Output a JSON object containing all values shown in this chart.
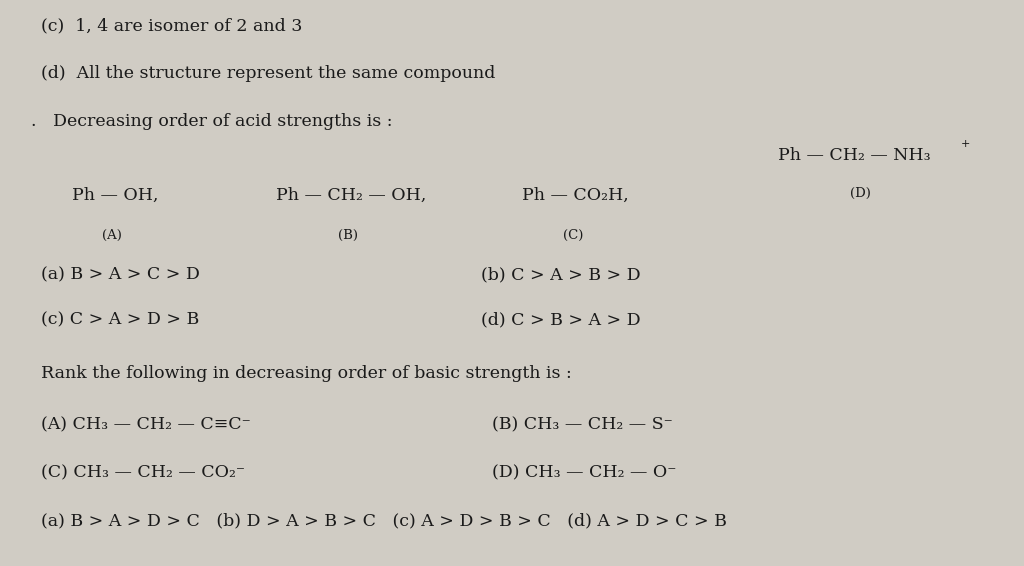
{
  "bg_color": "#d0ccc4",
  "text_color": "#1a1a1a",
  "figsize": [
    10.24,
    5.66
  ],
  "dpi": 100,
  "line_c": "(c)  1, 4 are isomer of 2 and 3",
  "line_d": "(d)  All the structure represent the same compound",
  "line_q": ".   Decreasing order of acid strengths is :",
  "compA_main": "Ph — OH,",
  "compA_sub": "(A)",
  "compB_main": "Ph — CH₂ — OH,",
  "compB_sub": "(B)",
  "compC_main": "Ph — CO₂H,",
  "compC_sub": "(C)",
  "compD_main": "Ph — CH₂ — NH₃",
  "compD_super": "+",
  "compD_sub": "(D)",
  "opt_a1": "(a) B > A > C > D",
  "opt_b1": "(b) C > A > B > D",
  "opt_c1": "(c) C > A > D > B",
  "opt_d1": "(d) C > B > A > D",
  "rank_q": "Rank the following in decreasing order of basic strength is :",
  "bA": "(A) CH₃ — CH₂ — C≡C⁻",
  "bB": "(B) CH₃ — CH₂ — S⁻",
  "bC": "(C) CH₃ — CH₂ — CO₂⁻",
  "bD": "(D) CH₃ — CH₂ — O⁻",
  "final": "(a) B > A > D > C   (b) D > A > B > C   (c) A > D > B > C   (d) A > D > C > B"
}
